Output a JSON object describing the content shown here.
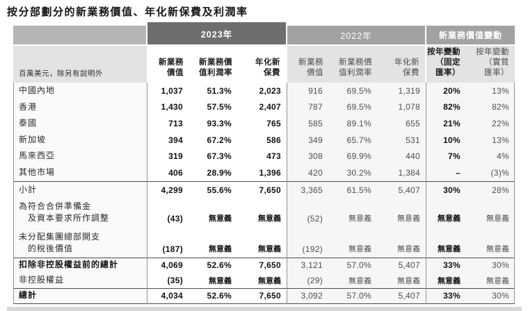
{
  "title": "按分部劃分的新業務價值、年化新保費及利潤率",
  "colors": {
    "band_2023": "#6e6e6e",
    "band_2022": "#a2a2a2",
    "band_label": "#b5b5b5",
    "band2_gray": "#e3e3e3",
    "highlight_col": "#ffffff",
    "rule_line": "#4a4a4a"
  },
  "table": {
    "note": "百萬美元，除另有說明外",
    "groups": [
      {
        "label": "2023年",
        "columns": [
          "新業務\n價值",
          "新業務價\n值利潤率",
          "年化新\n保費"
        ]
      },
      {
        "label": "2022年",
        "columns": [
          "新業務\n價值",
          "新業務價\n值利潤率",
          "年化新\n保費"
        ]
      },
      {
        "label": "新業務價值變動",
        "columns": [
          "按年變動\n（固定\n匯率）",
          "按年變動\n（實質\n匯率）"
        ]
      }
    ],
    "rows": [
      {
        "label": "中國內地",
        "cells": [
          "1,037",
          "51.3%",
          "2,023",
          "916",
          "69.5%",
          "1,319",
          "20%",
          "13%"
        ]
      },
      {
        "label": "香港",
        "cells": [
          "1,430",
          "57.5%",
          "2,407",
          "787",
          "69.5%",
          "1,078",
          "82%",
          "82%"
        ]
      },
      {
        "label": "泰國",
        "cells": [
          "713",
          "93.3%",
          "765",
          "585",
          "89.1%",
          "655",
          "21%",
          "22%"
        ]
      },
      {
        "label": "新加坡",
        "cells": [
          "394",
          "67.2%",
          "586",
          "349",
          "65.7%",
          "531",
          "10%",
          "13%"
        ]
      },
      {
        "label": "馬來西亞",
        "cells": [
          "319",
          "67.3%",
          "473",
          "308",
          "69.9%",
          "440",
          "7%",
          "4%"
        ]
      },
      {
        "label": "其他市場",
        "cells": [
          "406",
          "28.9%",
          "1,396",
          "420",
          "30.2%",
          "1,384",
          "–",
          "(3)%"
        ]
      },
      {
        "label": "小計",
        "cells": [
          "4,299",
          "55.6%",
          "7,650",
          "3,365",
          "61.5%",
          "5,407",
          "30%",
          "28%"
        ]
      },
      {
        "label": "為符合合併準備金\n　及資本要求所作調整",
        "cells": [
          "(43)",
          "無意義",
          "無意義",
          "(52)",
          "無意義",
          "無意義",
          "無意義",
          "無意義"
        ]
      },
      {
        "label": "未分配集團總部開支\n　的稅後價值",
        "cells": [
          "(187)",
          "無意義",
          "無意義",
          "(192)",
          "無意義",
          "無意義",
          "無意義",
          "無意義"
        ]
      },
      {
        "label": "扣除非控股權益前的總計",
        "cells": [
          "4,069",
          "52.6%",
          "7,650",
          "3,121",
          "57.0%",
          "5,407",
          "33%",
          "30%"
        ]
      },
      {
        "label": "非控股權益",
        "cells": [
          "(35)",
          "無意義",
          "無意義",
          "(29)",
          "無意義",
          "無意義",
          "無意義",
          "無意義"
        ]
      },
      {
        "label": "總計",
        "cells": [
          "4,034",
          "52.6%",
          "7,650",
          "3,092",
          "57.0%",
          "5,407",
          "33%",
          "30%"
        ]
      }
    ]
  }
}
